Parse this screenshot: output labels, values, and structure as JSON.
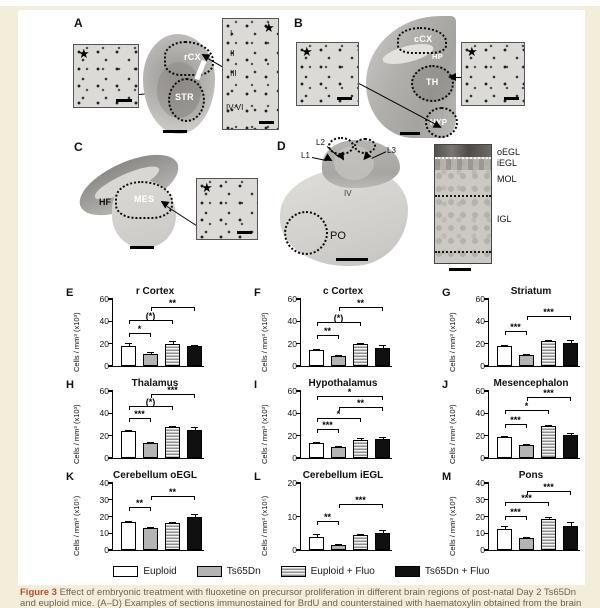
{
  "icons": {
    "star": "★"
  },
  "histology": {
    "panel_a": {
      "letter": "A",
      "cortex_label": "rCX",
      "striatum_label": "STR",
      "layer_labels": [
        "I",
        "II",
        "III",
        "IV-VI"
      ]
    },
    "panel_b": {
      "letter": "B",
      "cortex_label": "cCX",
      "hippocampus_label": "HP",
      "thalamus_label": "TH",
      "hypothalamus_label": "HYP"
    },
    "panel_c": {
      "letter": "C",
      "hf_label": "HF",
      "mes_label": "MES"
    },
    "panel_d": {
      "letter": "D",
      "lobule_labels": [
        "L1",
        "L2",
        "L3"
      ],
      "ventricle_label": "IV",
      "pons_label": "PO",
      "layer_labels": [
        "oEGL",
        "iEGL",
        "MOL",
        "IGL"
      ]
    }
  },
  "legend": {
    "items": [
      {
        "label": "Euploid",
        "fill": "white"
      },
      {
        "label": "Ts65Dn",
        "fill": "gray"
      },
      {
        "label": "Euploid + Fluo",
        "fill": "hatch"
      },
      {
        "label": "Ts65Dn + Fluo",
        "fill": "black"
      }
    ]
  },
  "caption": {
    "label": "Figure 3",
    "label_color": "#bf4a2e",
    "line1": "Effect of embryonic treatment with fluoxetine on precursor proliferation in different brain regions of post-natal Day 2 Ts65Dn",
    "line2": "and euploid mice. (A–D) Examples of sections immunostained for BrdU and counterstained with haematoxylin obtained from the brain of euploid mice."
  },
  "chart_data": [
    {
      "panel": "E",
      "title": "r Cortex",
      "type": "bar",
      "ylabel": "Cells / mm³ (x10³)",
      "ylim": [
        0,
        60
      ],
      "yticks": [
        0,
        20,
        40,
        60
      ],
      "categories": [
        "Euploid",
        "Ts65Dn",
        "Euploid + Fluo",
        "Ts65Dn + Fluo"
      ],
      "fills": [
        "white",
        "gray",
        "hatch",
        "black"
      ],
      "values": [
        18,
        10.5,
        20,
        17.5
      ],
      "errors": [
        2.5,
        2,
        2,
        1
      ],
      "sig": [
        {
          "from": 0,
          "to": 1,
          "label": "*",
          "y": 26
        },
        {
          "from": 0,
          "to": 2,
          "label": "(*)",
          "y": 38
        },
        {
          "from": 1,
          "to": 3,
          "label": "**",
          "y": 49
        }
      ]
    },
    {
      "panel": "F",
      "title": "c Cortex",
      "type": "bar",
      "ylabel": "Cells / mm³ (x10³)",
      "ylim": [
        0,
        60
      ],
      "yticks": [
        0,
        20,
        40,
        60
      ],
      "categories": [
        "Euploid",
        "Ts65Dn",
        "Euploid + Fluo",
        "Ts65Dn + Fluo"
      ],
      "fills": [
        "white",
        "gray",
        "hatch",
        "black"
      ],
      "values": [
        14,
        9,
        19.5,
        16
      ],
      "errors": [
        1,
        0.8,
        1.2,
        2.5
      ],
      "sig": [
        {
          "from": 0,
          "to": 1,
          "label": "**",
          "y": 24
        },
        {
          "from": 0,
          "to": 2,
          "label": "(*)",
          "y": 36
        },
        {
          "from": 1,
          "to": 3,
          "label": "**",
          "y": 49
        }
      ]
    },
    {
      "panel": "G",
      "title": "Striatum",
      "type": "bar",
      "ylabel": "Cells / mm³ (x10³)",
      "ylim": [
        0,
        60
      ],
      "yticks": [
        0,
        20,
        40,
        60
      ],
      "categories": [
        "Euploid",
        "Ts65Dn",
        "Euploid + Fluo",
        "Ts65Dn + Fluo"
      ],
      "fills": [
        "white",
        "gray",
        "hatch",
        "black"
      ],
      "values": [
        18,
        10,
        22,
        21
      ],
      "errors": [
        1.2,
        0.5,
        1,
        2
      ],
      "sig": [
        {
          "from": 0,
          "to": 1,
          "label": "***",
          "y": 28
        },
        {
          "from": 1,
          "to": 3,
          "label": "***",
          "y": 41
        }
      ]
    },
    {
      "panel": "H",
      "title": "Thalamus",
      "type": "bar",
      "ylabel": "Cells / mm³ (x10³)",
      "ylim": [
        0,
        60
      ],
      "yticks": [
        0,
        20,
        40,
        60
      ],
      "categories": [
        "Euploid",
        "Ts65Dn",
        "Euploid + Fluo",
        "Ts65Dn + Fluo"
      ],
      "fills": [
        "white",
        "gray",
        "hatch",
        "black"
      ],
      "values": [
        24,
        13,
        28,
        25.5
      ],
      "errors": [
        1,
        1,
        1,
        2.5
      ],
      "sig": [
        {
          "from": 0,
          "to": 1,
          "label": "***",
          "y": 32
        },
        {
          "from": 0,
          "to": 2,
          "label": "(*)",
          "y": 43
        },
        {
          "from": 1,
          "to": 3,
          "label": "***",
          "y": 54
        }
      ]
    },
    {
      "panel": "I",
      "title": "Hypothalamus",
      "type": "bar",
      "ylabel": "Cells / mm³ (x10³)",
      "ylim": [
        0,
        60
      ],
      "yticks": [
        0,
        20,
        40,
        60
      ],
      "categories": [
        "Euploid",
        "Ts65Dn",
        "Euploid + Fluo",
        "Ts65Dn + Fluo"
      ],
      "fills": [
        "white",
        "gray",
        "hatch",
        "black"
      ],
      "values": [
        13,
        9.5,
        16,
        17
      ],
      "errors": [
        1,
        1,
        1.8,
        2
      ],
      "sig": [
        {
          "from": 0,
          "to": 1,
          "label": "***",
          "y": 22
        },
        {
          "from": 0,
          "to": 2,
          "label": "*",
          "y": 32
        },
        {
          "from": 1,
          "to": 3,
          "label": "**",
          "y": 42
        },
        {
          "from": 0,
          "to": 3,
          "label": "*",
          "y": 52
        }
      ]
    },
    {
      "panel": "J",
      "title": "Mesencephalon",
      "type": "bar",
      "ylabel": "Cells / mm³ (x10³)",
      "ylim": [
        0,
        60
      ],
      "yticks": [
        0,
        20,
        40,
        60
      ],
      "categories": [
        "Euploid",
        "Ts65Dn",
        "Euploid + Fluo",
        "Ts65Dn + Fluo"
      ],
      "fills": [
        "white",
        "gray",
        "hatch",
        "black"
      ],
      "values": [
        19,
        12,
        29,
        20.5
      ],
      "errors": [
        1,
        0.8,
        1,
        1.8
      ],
      "sig": [
        {
          "from": 0,
          "to": 1,
          "label": "***",
          "y": 27
        },
        {
          "from": 0,
          "to": 2,
          "label": "*",
          "y": 39
        },
        {
          "from": 1,
          "to": 3,
          "label": "***",
          "y": 51
        }
      ]
    },
    {
      "panel": "K",
      "title": "Cerebellum oEGL",
      "type": "bar",
      "ylabel": "Cells / mm³ (x10⁵)",
      "ylim": [
        0,
        40
      ],
      "yticks": [
        0,
        10,
        20,
        30,
        40
      ],
      "categories": [
        "Euploid",
        "Ts65Dn",
        "Euploid + Fluo",
        "Ts65Dn + Fluo"
      ],
      "fills": [
        "white",
        "gray",
        "hatch",
        "black"
      ],
      "values": [
        16.5,
        13,
        16,
        19.5
      ],
      "errors": [
        0.8,
        0.8,
        0.8,
        2
      ],
      "sig": [
        {
          "from": 0,
          "to": 1,
          "label": "**",
          "y": 23
        },
        {
          "from": 1,
          "to": 3,
          "label": "**",
          "y": 30
        }
      ]
    },
    {
      "panel": "L",
      "title": "Cerebellum iEGL",
      "type": "bar",
      "ylabel": "Cells / mm³ (x10⁵)",
      "ylim": [
        0,
        20
      ],
      "yticks": [
        0,
        10,
        20
      ],
      "categories": [
        "Euploid",
        "Ts65Dn",
        "Euploid + Fluo",
        "Ts65Dn + Fluo"
      ],
      "fills": [
        "white",
        "gray",
        "hatch",
        "black"
      ],
      "values": [
        4,
        1.5,
        4.5,
        5.2
      ],
      "errors": [
        0.9,
        0.2,
        0.4,
        0.9
      ],
      "sig": [
        {
          "from": 0,
          "to": 1,
          "label": "**",
          "y": 7.5
        },
        {
          "from": 1,
          "to": 3,
          "label": "***",
          "y": 12.5
        }
      ]
    },
    {
      "panel": "M",
      "title": "Pons",
      "type": "bar",
      "ylabel": "Cells / mm³ (x10³)",
      "ylim": [
        0,
        40
      ],
      "yticks": [
        0,
        10,
        20,
        30,
        40
      ],
      "categories": [
        "Euploid",
        "Ts65Dn",
        "Euploid + Fluo",
        "Ts65Dn + Fluo"
      ],
      "fills": [
        "white",
        "gray",
        "hatch",
        "black"
      ],
      "values": [
        12.5,
        7,
        18.5,
        14.5
      ],
      "errors": [
        1.8,
        0.5,
        1.5,
        2.5
      ],
      "sig": [
        {
          "from": 0,
          "to": 1,
          "label": "***",
          "y": 18
        },
        {
          "from": 0,
          "to": 2,
          "label": "***",
          "y": 26
        },
        {
          "from": 1,
          "to": 3,
          "label": "***",
          "y": 33
        }
      ]
    }
  ]
}
